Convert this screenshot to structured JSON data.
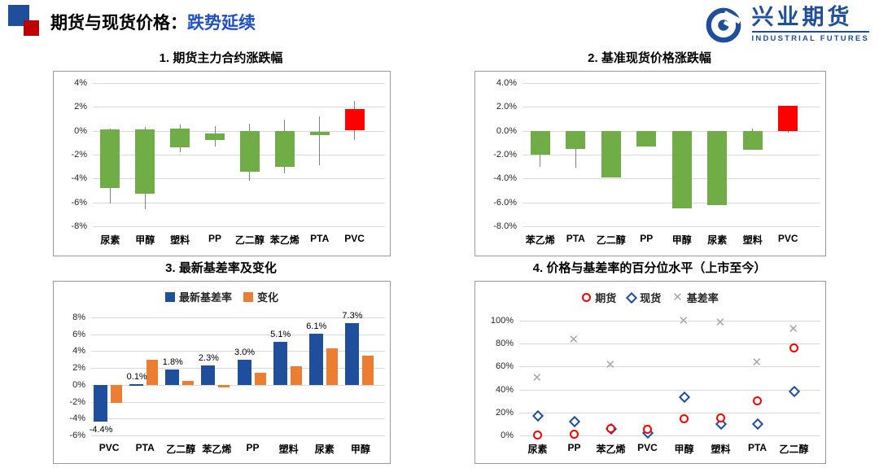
{
  "header": {
    "title_black": "期货与现货价格：",
    "title_accent": "跌势延续",
    "logo_cn": "兴业期货",
    "logo_en": "INDUSTRIAL FUTURES"
  },
  "colors": {
    "green": "#70AD47",
    "red": "#FF0000",
    "blue": "#1F4E9C",
    "orange": "#ED7D31",
    "gray_x": "#A6A6A6",
    "accent_blue": "#2050C8",
    "logo_blue": "#1F4E9B"
  },
  "chart_data": [
    {
      "type": "candlestick",
      "title": "1. 期货主力合约涨跌幅",
      "ylim": [
        -8,
        4
      ],
      "yticks": [
        {
          "v": 4,
          "label": "4%"
        },
        {
          "v": 2,
          "label": "2%"
        },
        {
          "v": 0,
          "label": "0%"
        },
        {
          "v": -2,
          "label": "-2%"
        },
        {
          "v": -4,
          "label": "-4%"
        },
        {
          "v": -6,
          "label": "-6%"
        },
        {
          "v": -8,
          "label": "-8%"
        }
      ],
      "categories": [
        "尿素",
        "甲醇",
        "塑料",
        "PP",
        "乙二醇",
        "苯乙烯",
        "PTA",
        "PVC"
      ],
      "bars": [
        {
          "high": 0.2,
          "low": -6.1,
          "top": 0.1,
          "bottom": -4.8,
          "up": false
        },
        {
          "high": 0.3,
          "low": -6.6,
          "top": 0.1,
          "bottom": -5.3,
          "up": false
        },
        {
          "high": 0.5,
          "low": -1.8,
          "top": 0.2,
          "bottom": -1.4,
          "up": false
        },
        {
          "high": 0.4,
          "low": -1.3,
          "top": -0.25,
          "bottom": -0.8,
          "up": false
        },
        {
          "high": 0.6,
          "low": -4.2,
          "top": 0.0,
          "bottom": -3.4,
          "up": false
        },
        {
          "high": 0.9,
          "low": -3.6,
          "top": 0.0,
          "bottom": -3.0,
          "up": false
        },
        {
          "high": 1.2,
          "low": -2.9,
          "top": -0.1,
          "bottom": -0.35,
          "up": false
        },
        {
          "high": 2.5,
          "low": -0.8,
          "top": 1.8,
          "bottom": 0.05,
          "up": true
        }
      ]
    },
    {
      "type": "candlestick",
      "title": "2. 基准现货价格涨跌幅",
      "ylim": [
        -8,
        4
      ],
      "yticks": [
        {
          "v": 4,
          "label": "4.0%"
        },
        {
          "v": 2,
          "label": "2.0%"
        },
        {
          "v": 0,
          "label": "0.0%"
        },
        {
          "v": -2,
          "label": "-2.0%"
        },
        {
          "v": -4,
          "label": "-4.0%"
        },
        {
          "v": -6,
          "label": "-6.0%"
        },
        {
          "v": -8,
          "label": "-8.0%"
        }
      ],
      "categories": [
        "苯乙烯",
        "PTA",
        "乙二醇",
        "PP",
        "甲醇",
        "尿素",
        "塑料",
        "PVC"
      ],
      "bars": [
        {
          "high": 0.0,
          "low": -3.0,
          "top": 0.0,
          "bottom": -2.0,
          "up": false
        },
        {
          "high": 0.0,
          "low": -3.1,
          "top": 0.0,
          "bottom": -1.5,
          "up": false
        },
        {
          "high": 0.0,
          "low": -3.9,
          "top": 0.0,
          "bottom": -3.9,
          "up": false
        },
        {
          "high": 0.0,
          "low": -1.3,
          "top": 0.0,
          "bottom": -1.3,
          "up": false
        },
        {
          "high": 0.0,
          "low": -6.5,
          "top": 0.0,
          "bottom": -6.5,
          "up": false
        },
        {
          "high": 0.0,
          "low": -6.2,
          "top": 0.0,
          "bottom": -6.2,
          "up": false
        },
        {
          "high": 0.15,
          "low": -1.6,
          "top": 0.0,
          "bottom": -1.6,
          "up": false
        },
        {
          "high": 2.1,
          "low": -0.15,
          "top": 2.1,
          "bottom": 0.0,
          "up": true
        }
      ]
    },
    {
      "type": "bar",
      "title": "3. 最新基差率及变化",
      "ylim": [
        -6,
        8
      ],
      "yticks": [
        {
          "v": 8,
          "label": "8%"
        },
        {
          "v": 6,
          "label": "6%"
        },
        {
          "v": 4,
          "label": "4%"
        },
        {
          "v": 2,
          "label": "2%"
        },
        {
          "v": 0,
          "label": "0%"
        },
        {
          "v": -2,
          "label": "-2%"
        },
        {
          "v": -4,
          "label": "-4%"
        },
        {
          "v": -6,
          "label": "-6%"
        }
      ],
      "categories": [
        "PVC",
        "PTA",
        "乙二醇",
        "苯乙烯",
        "PP",
        "塑料",
        "尿素",
        "甲醇"
      ],
      "legend": [
        "最新基差率",
        "变化"
      ],
      "series": [
        {
          "name": "最新基差率",
          "values": [
            -4.4,
            0.1,
            1.8,
            2.3,
            3.0,
            5.1,
            6.1,
            7.3
          ]
        },
        {
          "name": "变化",
          "values": [
            -2.1,
            3.0,
            0.5,
            -0.3,
            1.4,
            2.2,
            4.3,
            3.5
          ]
        }
      ],
      "labels": [
        "-4.4%",
        "0.1%",
        "1.8%",
        "2.3%",
        "3.0%",
        "5.1%",
        "6.1%",
        "7.3%"
      ]
    },
    {
      "type": "scatter",
      "title": "4. 价格与基差率的百分位水平（上市至今）",
      "ylim": [
        0,
        100
      ],
      "yticks": [
        {
          "v": 100,
          "label": "100%"
        },
        {
          "v": 80,
          "label": "80%"
        },
        {
          "v": 60,
          "label": "60%"
        },
        {
          "v": 40,
          "label": "40%"
        },
        {
          "v": 20,
          "label": "20%"
        },
        {
          "v": 0,
          "label": "0%"
        }
      ],
      "categories": [
        "尿素",
        "PP",
        "苯乙烯",
        "PVC",
        "甲醇",
        "塑料",
        "PTA",
        "乙二醇"
      ],
      "legend": [
        "期货",
        "现货",
        "基差率"
      ],
      "series": [
        {
          "name": "期货",
          "marker": "circle",
          "values": [
            0,
            0.5,
            6,
            5,
            14,
            15,
            30,
            76
          ]
        },
        {
          "name": "现货",
          "marker": "diamond",
          "values": [
            17,
            12,
            6,
            2,
            33,
            10,
            10,
            38
          ]
        },
        {
          "name": "基差率",
          "marker": "x",
          "values": [
            50,
            83,
            61,
            6,
            99,
            98,
            63,
            92
          ]
        }
      ]
    }
  ]
}
